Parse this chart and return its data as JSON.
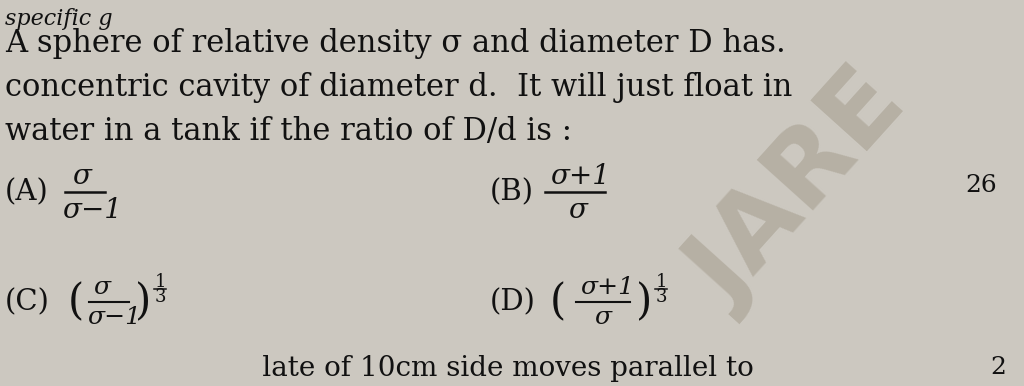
{
  "bg_color": "#ccc8c0",
  "text_color": "#111111",
  "watermark_color": "#a09888",
  "figwidth": 10.24,
  "figheight": 3.86,
  "dpi": 100,
  "line1": "A sphere of relative density σ and diameter D has.",
  "line2": "concentric cavity of diameter d.  It will just float in",
  "line3": "water in a tank if the ratio of D/d is :",
  "top_text": "specific g",
  "bottom_text": "                             late of 10cm side moves parallel to",
  "num_26": "26",
  "num_2": "2",
  "A_label": "(A)",
  "A_num": "σ",
  "A_den": "σ−1",
  "B_label": "(B)",
  "B_num": "σ+1",
  "B_den": "σ",
  "C_label": "(C)",
  "C_num": "σ",
  "C_den": "σ−1",
  "C_exp_num": "1",
  "C_exp_den": "3",
  "D_label": "(D)",
  "D_num": "σ+1",
  "D_den": "σ",
  "D_exp_num": "1",
  "D_exp_den": "3"
}
